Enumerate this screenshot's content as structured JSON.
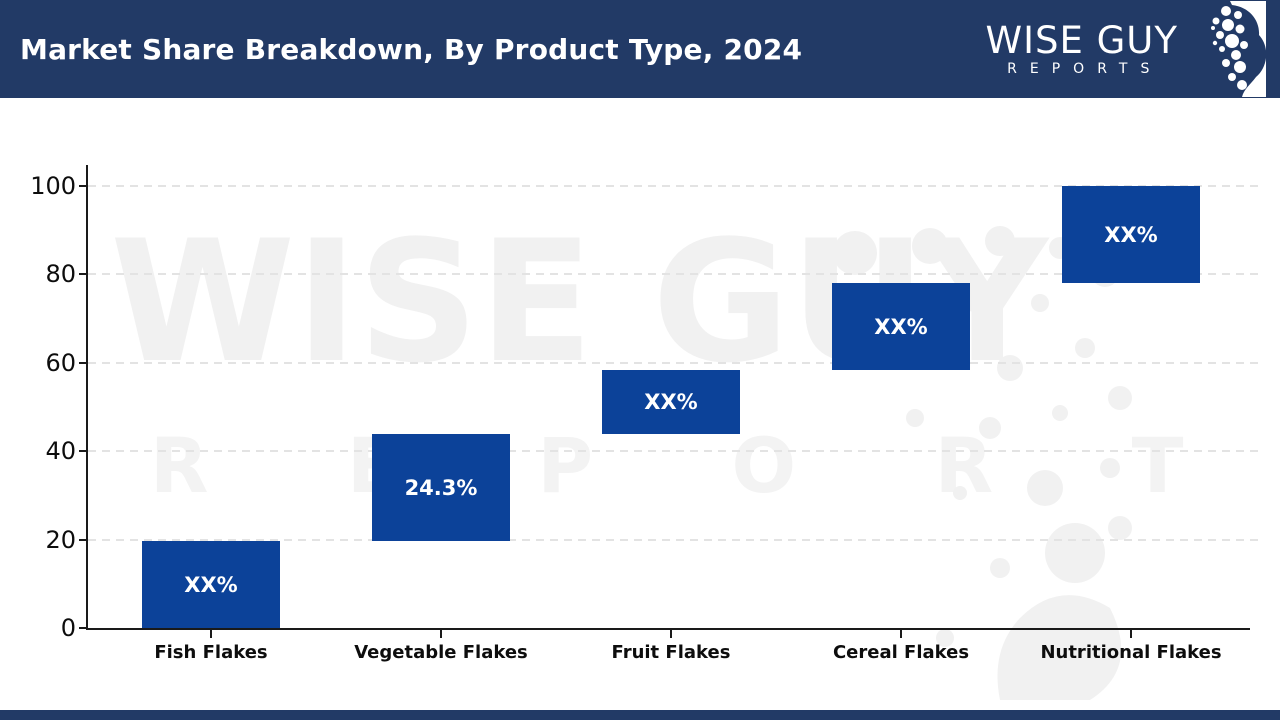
{
  "header": {
    "title": "Market Share Breakdown, By Product Type, 2024",
    "logo": {
      "line1": "WISE GUY",
      "line2": "REPORTS"
    }
  },
  "watermark": {
    "line1": "WISE GUY",
    "line2": "R E P O R T S"
  },
  "colors": {
    "header_bg": "#223A66",
    "footer_bg": "#223A66",
    "bar": "#0C4299",
    "axis": "#1A1A1A",
    "grid": "#E3E3E3",
    "bar_label": "#FFFFFF",
    "watermark": "#F1F1F1"
  },
  "chart_data": {
    "type": "bar",
    "subtype": "waterfall",
    "title": "Market Share Breakdown, By Product Type, 2024",
    "categories": [
      "Fish Flakes",
      "Vegetable Flakes",
      "Fruit Flakes",
      "Cereal Flakes",
      "Nutritional Flakes"
    ],
    "segments": [
      {
        "category": "Fish Flakes",
        "start": 0,
        "end": 19.6,
        "label": "XX%"
      },
      {
        "category": "Vegetable Flakes",
        "start": 19.6,
        "end": 43.9,
        "label": "24.3%"
      },
      {
        "category": "Fruit Flakes",
        "start": 43.9,
        "end": 58.4,
        "label": "XX%"
      },
      {
        "category": "Cereal Flakes",
        "start": 58.4,
        "end": 78.0,
        "label": "XX%"
      },
      {
        "category": "Nutritional Flakes",
        "start": 78.0,
        "end": 100,
        "label": "XX%"
      }
    ],
    "yticks": [
      0,
      20,
      40,
      60,
      80,
      100
    ],
    "ylim": [
      0,
      105
    ],
    "xlabel": "",
    "ylabel": "",
    "grid": "horizontal-dashed",
    "legend": "none"
  }
}
